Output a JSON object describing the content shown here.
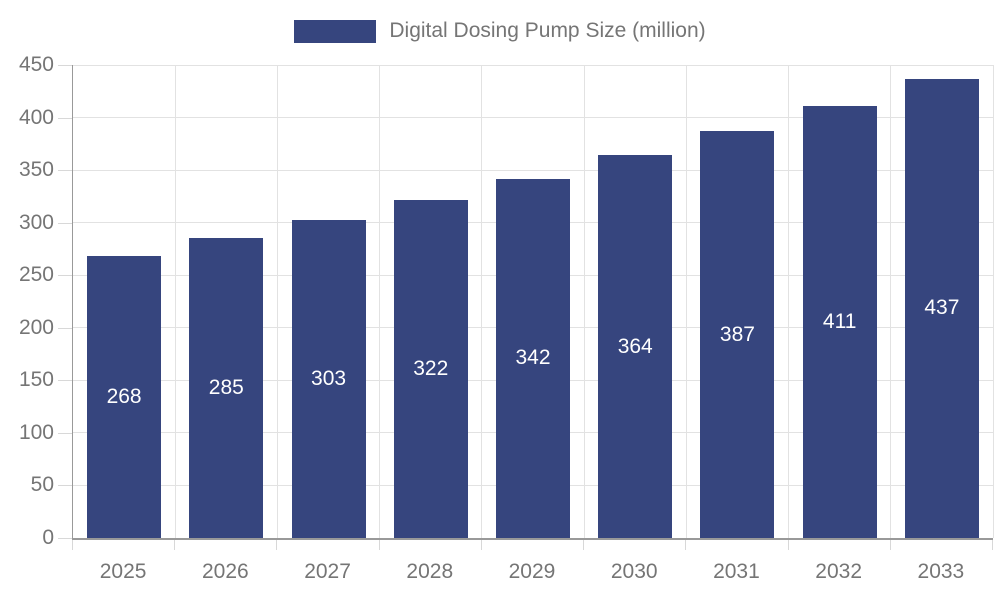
{
  "chart_data": {
    "type": "bar",
    "title": "",
    "legend": {
      "label": "Digital Dosing Pump Size (million)",
      "position": "top-center"
    },
    "categories": [
      "2025",
      "2026",
      "2027",
      "2028",
      "2029",
      "2030",
      "2031",
      "2032",
      "2033"
    ],
    "values": [
      268,
      285,
      303,
      322,
      342,
      364,
      387,
      411,
      437
    ],
    "series": [
      {
        "name": "Digital Dosing Pump Size (million)",
        "values": [
          268,
          285,
          303,
          322,
          342,
          364,
          387,
          411,
          437
        ]
      }
    ],
    "xlabel": "",
    "ylabel": "",
    "ylim": [
      0,
      450
    ],
    "yticks": [
      0,
      50,
      100,
      150,
      200,
      250,
      300,
      350,
      400,
      450
    ],
    "grid": "on",
    "value_labels": "centered-inside-bars",
    "colors": {
      "bar": "#36457E",
      "value_label": "#FFFFFF",
      "tick_label": "#757575",
      "grid_line": "#E2E2E2",
      "axis_line": "#999999",
      "tick_mark": "#D8D8D8",
      "background": "#FFFFFF"
    }
  }
}
